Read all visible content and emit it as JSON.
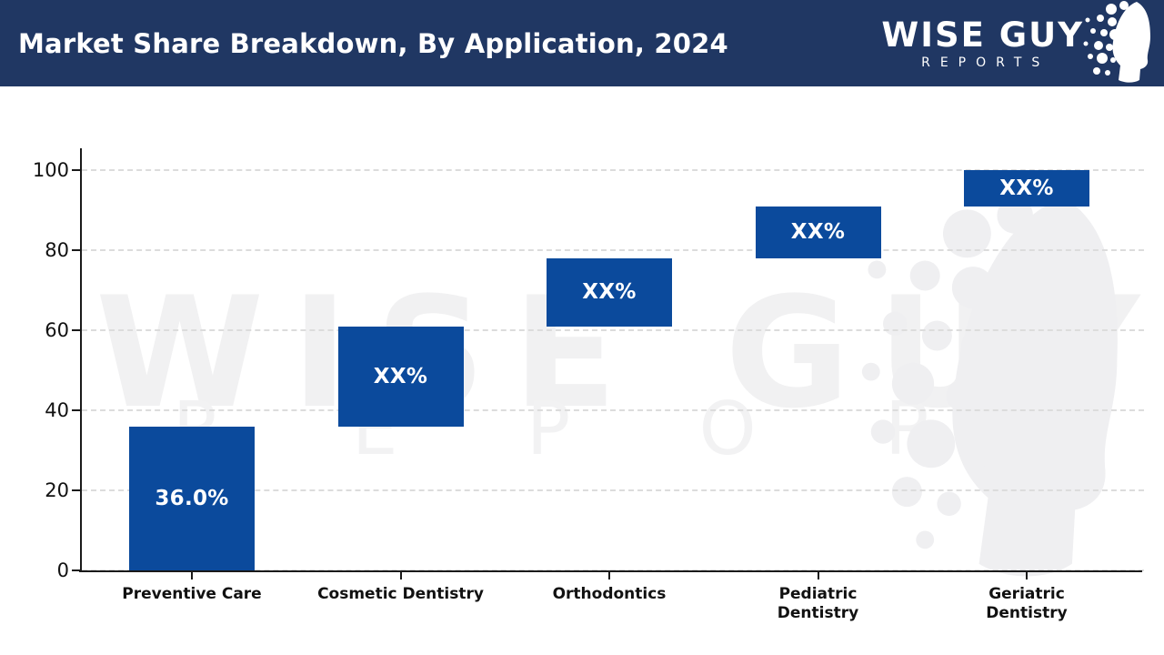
{
  "header": {
    "title": "Market Share Breakdown, By Application, 2024",
    "logo": {
      "line1": "WISE GUY",
      "line2": "REPORTS"
    }
  },
  "watermark": {
    "line1": "WISE GUY",
    "line2": "R E P O R T S"
  },
  "colors": {
    "header_bg": "#203763",
    "bar": "#0b4a9c",
    "grid": "#dcdcdc",
    "axis": "#1a1a1a",
    "watermark": "#f1f1f2",
    "label_on_bar": "#ffffff"
  },
  "chart_data": {
    "type": "waterfall",
    "title": "Market Share Breakdown, By Application, 2024",
    "categories": [
      "Preventive Care",
      "Cosmetic Dentistry",
      "Orthodontics",
      "Pediatric\nDentistry",
      "Geriatric\nDentistry"
    ],
    "values": [
      36,
      25,
      17,
      13,
      9
    ],
    "starts": [
      0,
      36,
      61,
      78,
      91
    ],
    "ends": [
      36,
      61,
      78,
      91,
      100
    ],
    "bar_labels": [
      "36.0%",
      "XX%",
      "XX%",
      "XX%",
      "XX%"
    ],
    "yticks": [
      0,
      20,
      40,
      60,
      80,
      100
    ],
    "ylim": [
      0,
      100
    ],
    "xlabel": "",
    "ylabel": "",
    "grid": "horizontal-dashed",
    "legend": "none"
  }
}
